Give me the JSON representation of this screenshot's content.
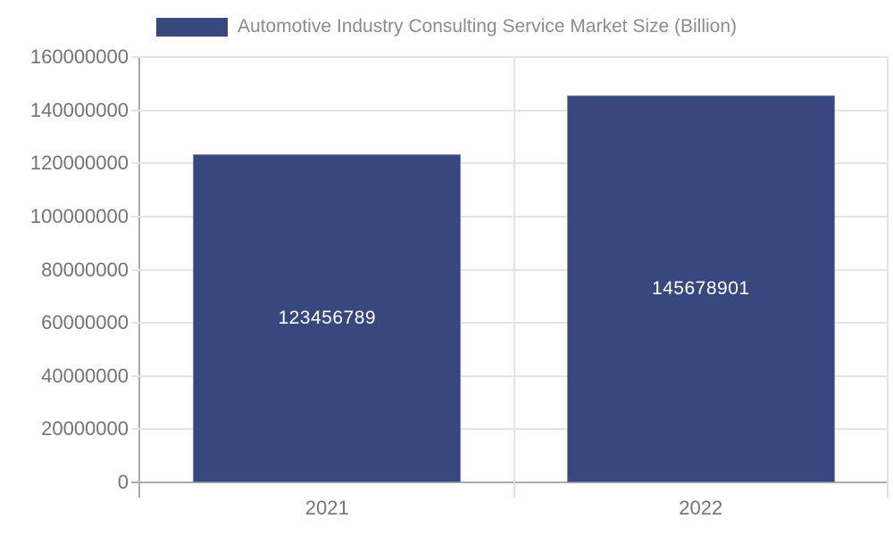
{
  "legend": {
    "label": "Automotive Industry Consulting Service Market Size (Billion)",
    "swatch_color": "#38487E"
  },
  "colors": {
    "bar": "#38487E",
    "grid_line": "#e4e4e4",
    "axis_line": "#a9a9a9",
    "tick_text": "#737373",
    "legend_text": "#8c8c8c",
    "value_text": "#ffffff",
    "background": "#ffffff"
  },
  "chart_data": {
    "type": "bar",
    "title": "Automotive Industry Consulting Service Market Size (Billion)",
    "categories": [
      "2021",
      "2022"
    ],
    "values": [
      123456789,
      145678901
    ],
    "value_labels": [
      "123456789",
      "145678901"
    ],
    "ytick_labels": [
      "0",
      "20000000",
      "40000000",
      "60000000",
      "80000000",
      "100000000",
      "120000000",
      "140000000",
      "160000000"
    ],
    "ylim": [
      0,
      160000000
    ],
    "ytick_step": 20000000,
    "xlabel": "",
    "ylabel": "",
    "grid": true,
    "legend_position": "top",
    "value_label_position": "center-inside"
  }
}
